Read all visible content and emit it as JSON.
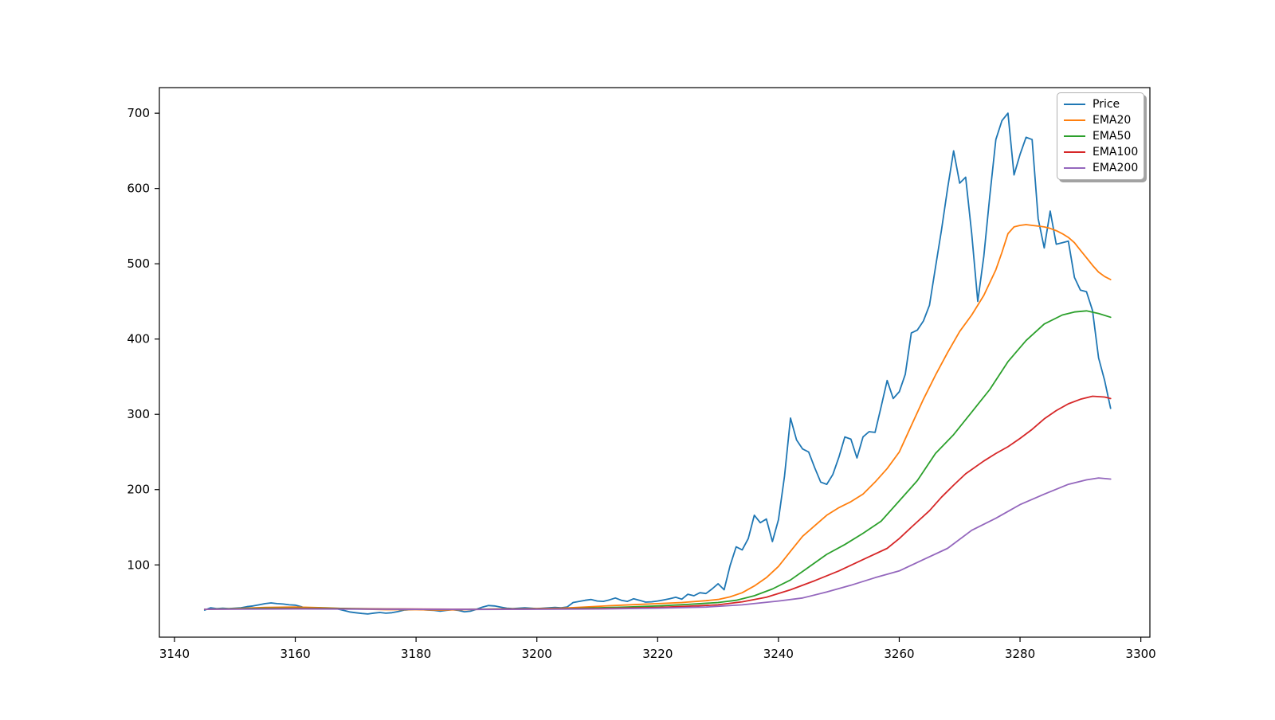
{
  "figure": {
    "background": "#ffffff",
    "spine_color": "#000000",
    "tick_color": "#000000"
  },
  "legend": {
    "position": "upper right",
    "entries": [
      "Price",
      "EMA20",
      "EMA50",
      "EMA100",
      "EMA200"
    ]
  },
  "chart_data": {
    "type": "line",
    "title": "",
    "xlabel": "",
    "ylabel": "",
    "grid": false,
    "xlim": [
      3137.5,
      3301.5
    ],
    "ylim": [
      4,
      734
    ],
    "x_ticks": [
      3140,
      3160,
      3180,
      3200,
      3220,
      3240,
      3260,
      3280,
      3300
    ],
    "y_ticks": [
      100,
      200,
      300,
      400,
      500,
      600,
      700
    ],
    "legend_position": "upper right",
    "series": [
      {
        "name": "Price",
        "color": "#1f77b4",
        "x_start": 3145,
        "x_step": 1,
        "values": [
          40,
          43,
          42,
          42.5,
          42,
          42.5,
          43,
          44.5,
          45.5,
          47,
          48.5,
          49.5,
          48.5,
          48,
          47,
          46.5,
          44.5,
          41.5,
          42.5,
          43,
          42.5,
          42,
          41.5,
          39.5,
          37.5,
          36.5,
          35.5,
          34.8,
          36,
          36.8,
          35.8,
          36.5,
          38,
          40,
          40.5,
          41,
          40.5,
          40,
          39.5,
          38.5,
          39.5,
          40.5,
          39.5,
          37.8,
          38.5,
          41,
          44,
          46,
          45.5,
          44,
          42.5,
          42,
          42.5,
          43,
          42.5,
          42,
          42.5,
          43,
          43.5,
          43,
          44,
          50,
          51.5,
          53,
          54,
          52,
          51.5,
          53.5,
          56,
          53,
          51.5,
          55,
          53,
          50.5,
          51,
          52,
          53.5,
          55,
          57,
          54.5,
          61,
          59,
          63,
          62,
          68,
          75,
          67,
          99,
          124,
          120,
          135,
          166,
          156,
          161,
          131,
          160,
          218,
          295,
          266,
          254,
          250,
          229,
          210,
          207,
          220,
          243,
          270,
          267,
          242,
          270,
          277,
          276,
          310,
          345,
          321,
          330,
          353,
          408,
          412,
          424,
          445,
          495,
          545,
          600,
          650,
          607,
          615,
          540,
          450,
          510,
          590,
          665,
          690,
          700,
          618,
          645,
          668,
          665,
          560,
          521,
          570,
          526,
          528,
          530,
          482,
          465,
          463,
          438,
          375,
          345,
          308
        ]
      },
      {
        "name": "EMA20",
        "color": "#ff7f0e",
        "points": [
          [
            3145,
            41
          ],
          [
            3150,
            42
          ],
          [
            3155,
            43.5
          ],
          [
            3160,
            44
          ],
          [
            3165,
            43
          ],
          [
            3170,
            41.5
          ],
          [
            3175,
            40.5
          ],
          [
            3180,
            40.5
          ],
          [
            3184,
            40
          ],
          [
            3188,
            40.5
          ],
          [
            3192,
            41.2
          ],
          [
            3196,
            41.6
          ],
          [
            3200,
            42
          ],
          [
            3204,
            42.5
          ],
          [
            3208,
            44
          ],
          [
            3212,
            45.8
          ],
          [
            3216,
            47.2
          ],
          [
            3220,
            48.5
          ],
          [
            3224,
            50
          ],
          [
            3228,
            52.5
          ],
          [
            3230,
            54
          ],
          [
            3232,
            57.5
          ],
          [
            3234,
            63
          ],
          [
            3236,
            72
          ],
          [
            3238,
            83
          ],
          [
            3240,
            98
          ],
          [
            3242,
            118
          ],
          [
            3244,
            138
          ],
          [
            3246,
            152
          ],
          [
            3248,
            166
          ],
          [
            3250,
            176
          ],
          [
            3252,
            184
          ],
          [
            3254,
            194
          ],
          [
            3256,
            210
          ],
          [
            3258,
            228
          ],
          [
            3260,
            250
          ],
          [
            3262,
            285
          ],
          [
            3264,
            320
          ],
          [
            3266,
            352
          ],
          [
            3268,
            382
          ],
          [
            3270,
            410
          ],
          [
            3272,
            432
          ],
          [
            3274,
            458
          ],
          [
            3276,
            492
          ],
          [
            3277,
            515
          ],
          [
            3278,
            540
          ],
          [
            3279,
            549
          ],
          [
            3280,
            551
          ],
          [
            3281,
            552
          ],
          [
            3282,
            551
          ],
          [
            3283,
            550
          ],
          [
            3284,
            549
          ],
          [
            3285,
            547
          ],
          [
            3286,
            544
          ],
          [
            3287,
            540
          ],
          [
            3288,
            535
          ],
          [
            3289,
            528
          ],
          [
            3290,
            518
          ],
          [
            3291,
            508
          ],
          [
            3292,
            498
          ],
          [
            3293,
            489
          ],
          [
            3294,
            483
          ],
          [
            3295,
            479
          ]
        ]
      },
      {
        "name": "EMA50",
        "color": "#2ca02c",
        "points": [
          [
            3145,
            41
          ],
          [
            3155,
            42.5
          ],
          [
            3165,
            42.5
          ],
          [
            3175,
            41.5
          ],
          [
            3185,
            41
          ],
          [
            3195,
            41.5
          ],
          [
            3205,
            42
          ],
          [
            3210,
            43
          ],
          [
            3215,
            44
          ],
          [
            3220,
            45.5
          ],
          [
            3225,
            47.5
          ],
          [
            3230,
            50
          ],
          [
            3233,
            53
          ],
          [
            3236,
            59
          ],
          [
            3239,
            68
          ],
          [
            3242,
            80
          ],
          [
            3245,
            97
          ],
          [
            3248,
            114
          ],
          [
            3251,
            127
          ],
          [
            3254,
            142
          ],
          [
            3257,
            158
          ],
          [
            3260,
            185
          ],
          [
            3263,
            212
          ],
          [
            3266,
            248
          ],
          [
            3269,
            273
          ],
          [
            3272,
            303
          ],
          [
            3275,
            333
          ],
          [
            3278,
            370
          ],
          [
            3281,
            398
          ],
          [
            3284,
            420
          ],
          [
            3287,
            432
          ],
          [
            3289,
            436
          ],
          [
            3291,
            437.5
          ],
          [
            3293,
            434
          ],
          [
            3295,
            429
          ]
        ]
      },
      {
        "name": "EMA100",
        "color": "#d62728",
        "points": [
          [
            3145,
            41
          ],
          [
            3160,
            42
          ],
          [
            3175,
            41.5
          ],
          [
            3190,
            41
          ],
          [
            3200,
            41.5
          ],
          [
            3210,
            42
          ],
          [
            3220,
            43.5
          ],
          [
            3225,
            45
          ],
          [
            3230,
            47
          ],
          [
            3234,
            51
          ],
          [
            3238,
            57
          ],
          [
            3242,
            67
          ],
          [
            3246,
            79
          ],
          [
            3250,
            92
          ],
          [
            3254,
            107
          ],
          [
            3258,
            122
          ],
          [
            3260,
            135
          ],
          [
            3262,
            150
          ],
          [
            3265,
            172
          ],
          [
            3267,
            190
          ],
          [
            3269,
            206
          ],
          [
            3271,
            221
          ],
          [
            3274,
            238
          ],
          [
            3276,
            248
          ],
          [
            3278,
            257
          ],
          [
            3280,
            268
          ],
          [
            3282,
            280
          ],
          [
            3284,
            294
          ],
          [
            3286,
            305
          ],
          [
            3288,
            314
          ],
          [
            3290,
            320
          ],
          [
            3292,
            324
          ],
          [
            3294,
            323
          ],
          [
            3295,
            321
          ]
        ]
      },
      {
        "name": "EMA200",
        "color": "#9467bd",
        "points": [
          [
            3145,
            41
          ],
          [
            3160,
            41.5
          ],
          [
            3175,
            41
          ],
          [
            3190,
            40.8
          ],
          [
            3200,
            41
          ],
          [
            3210,
            41.5
          ],
          [
            3220,
            42.5
          ],
          [
            3228,
            44
          ],
          [
            3234,
            47
          ],
          [
            3240,
            52
          ],
          [
            3244,
            56
          ],
          [
            3248,
            64
          ],
          [
            3252,
            73
          ],
          [
            3256,
            83
          ],
          [
            3260,
            92
          ],
          [
            3264,
            107
          ],
          [
            3268,
            122
          ],
          [
            3272,
            146
          ],
          [
            3276,
            162
          ],
          [
            3280,
            180
          ],
          [
            3284,
            194
          ],
          [
            3288,
            207
          ],
          [
            3291,
            213
          ],
          [
            3293,
            215.5
          ],
          [
            3295,
            214
          ]
        ]
      }
    ]
  }
}
